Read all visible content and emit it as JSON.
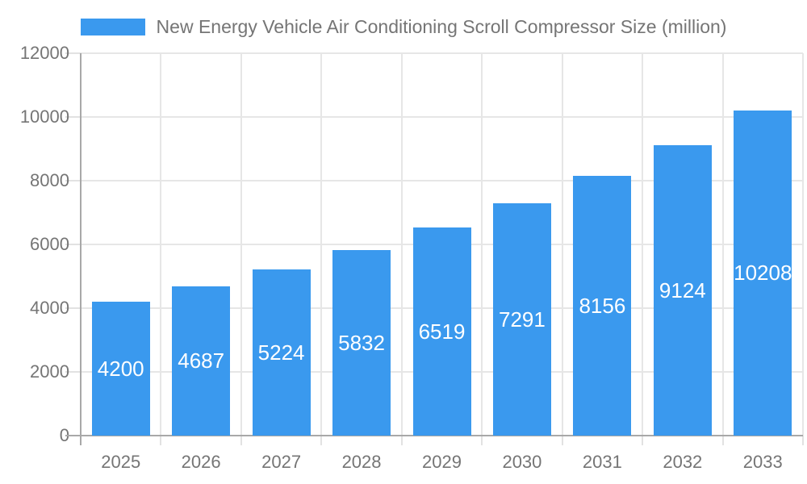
{
  "legend": {
    "label": "New Energy Vehicle Air Conditioning Scroll Compressor Size (million)"
  },
  "colors": {
    "bar": "#3A99EE",
    "grid": "#e6e6e6",
    "axis": "#a8a8a8",
    "tick_text": "#757575",
    "value_label": "#ffffff",
    "background": "#ffffff"
  },
  "chart_data": {
    "type": "bar",
    "title": "New Energy Vehicle Air Conditioning Scroll Compressor Size (million)",
    "categories": [
      "2025",
      "2026",
      "2027",
      "2028",
      "2029",
      "2030",
      "2031",
      "2032",
      "2033"
    ],
    "values": [
      4200,
      4687,
      5224,
      5832,
      6519,
      7291,
      8156,
      9124,
      10208
    ],
    "xlabel": "",
    "ylabel": "",
    "ylim": [
      0,
      12000
    ],
    "yticks": [
      0,
      2000,
      4000,
      6000,
      8000,
      10000,
      12000
    ],
    "grid": true,
    "legend_position": "top",
    "value_label_position": "inside-center"
  }
}
